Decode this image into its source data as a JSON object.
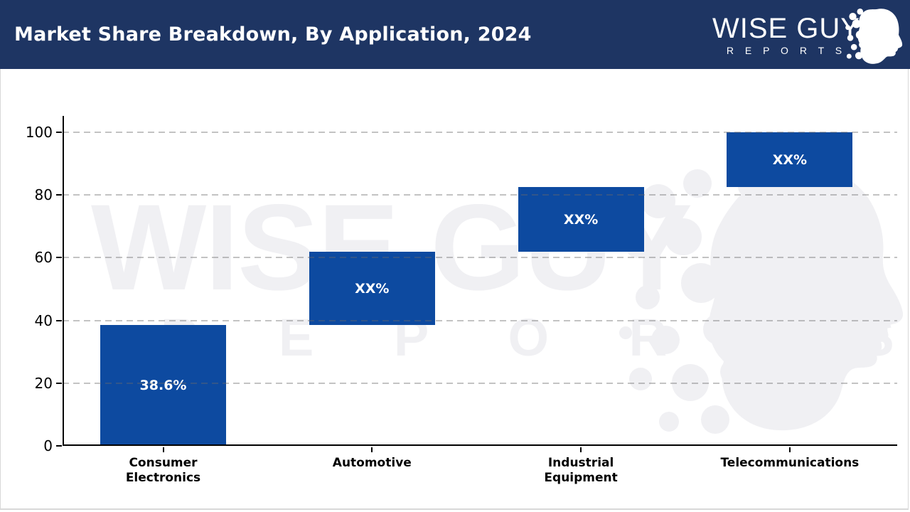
{
  "header": {
    "title": "Market Share Breakdown, By Application, 2024",
    "logo": {
      "brand_line1": "WISE GUY",
      "brand_line2": "R E P O R T S",
      "icon": "dotted-head-profile-icon"
    }
  },
  "watermark": {
    "line1": "WISE GUY",
    "line2": "R E P O R T S",
    "icon": "dotted-head-profile-icon"
  },
  "colors": {
    "header_bg": "#1e3563",
    "bar_fill": "#0d4aa0",
    "bar_label_text": "#ffffff",
    "grid_dash": "rgba(105,105,105,0.4)",
    "axis": "#000000",
    "watermark": "#f0f0f3",
    "page_border": "#d8d8d8"
  },
  "chart_data": {
    "type": "bar",
    "variant": "waterfall",
    "title": "Market Share Breakdown, By Application, 2024",
    "unit": "%",
    "categories": [
      "Consumer\nElectronics",
      "Automotive",
      "Industrial\nEquipment",
      "Telecommunications"
    ],
    "bars": [
      {
        "category": "Consumer Electronics",
        "label": "38.6%",
        "start": 0,
        "end": 38.6
      },
      {
        "category": "Automotive",
        "label": "XX%",
        "start": 38.6,
        "end": 61.8
      },
      {
        "category": "Industrial Equipment",
        "label": "XX%",
        "start": 61.8,
        "end": 82.5
      },
      {
        "category": "Telecommunications",
        "label": "XX%",
        "start": 82.5,
        "end": 100
      }
    ],
    "ylim": [
      0,
      100
    ],
    "yticks": [
      0,
      20,
      40,
      60,
      80,
      100
    ],
    "xlabel": "",
    "ylabel": "",
    "grid": "dashed-horizontal",
    "legend": null
  }
}
